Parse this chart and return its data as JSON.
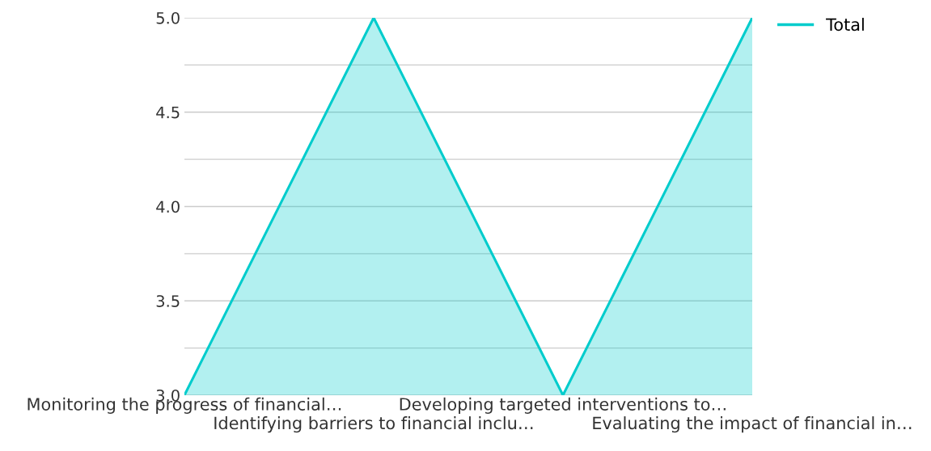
{
  "chart_data": {
    "type": "area",
    "categories": [
      "Monitoring the progress of financial…",
      "Identifying barriers to financial inclu…",
      "Developing targeted interventions to…",
      "Evaluating the impact of financial in…"
    ],
    "series": [
      {
        "name": "Total",
        "color": "#00cccc",
        "values": [
          3,
          5,
          3,
          5
        ]
      }
    ],
    "ylim": [
      3,
      5
    ],
    "yticks": [
      {
        "value": 3,
        "label": "3.0"
      },
      {
        "value": 3.25,
        "label": null
      },
      {
        "value": 3.5,
        "label": "3.5"
      },
      {
        "value": 3.75,
        "label": null
      },
      {
        "value": 4,
        "label": "4.0"
      },
      {
        "value": 4.25,
        "label": null
      },
      {
        "value": 4.5,
        "label": "4.5"
      },
      {
        "value": 4.75,
        "label": null
      },
      {
        "value": 5,
        "label": "5.0"
      }
    ],
    "grid": "y",
    "legend": "top right",
    "marker": "none",
    "line_style": "solid"
  }
}
